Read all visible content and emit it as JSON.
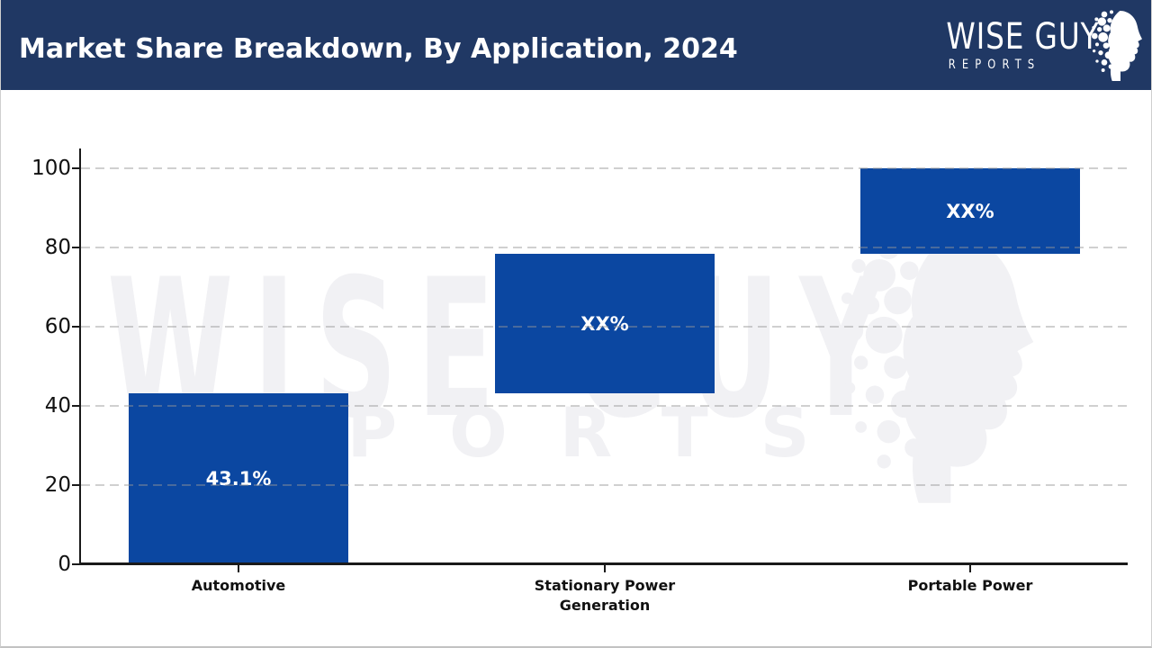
{
  "header": {
    "title": "Market Share Breakdown, By Application, 2024",
    "logo": {
      "line1": "WISE GUY",
      "line2": "REPORTS",
      "icon": "dotted-head-profile"
    }
  },
  "watermark": {
    "line1": "WISE GUY",
    "line2": "REPORTS",
    "icon": "dotted-head-profile"
  },
  "colors": {
    "header_bg": "#203864",
    "bar": "#0b47a1",
    "bar_label": "#ffffff",
    "axis": "#1a1a1a",
    "gridline": "#d8d8d8",
    "watermark": "#f1f1f4"
  },
  "chart_data": {
    "type": "bar",
    "subtype": "waterfall",
    "title": "Market Share Breakdown, By Application, 2024",
    "categories": [
      "Automotive",
      "Stationary Power Generation",
      "Portable Power"
    ],
    "segments": [
      {
        "category": "Automotive",
        "start": 0,
        "end": 43.1,
        "value": 43.1,
        "label": "43.1%"
      },
      {
        "category": "Stationary Power Generation",
        "start": 43.1,
        "end": 78.4,
        "value": 35.3,
        "label": "XX%"
      },
      {
        "category": "Portable Power",
        "start": 78.4,
        "end": 100,
        "value": 21.6,
        "label": "XX%"
      }
    ],
    "yticks": [
      0,
      20,
      40,
      60,
      80,
      100
    ],
    "ylim": [
      0,
      105
    ],
    "xlabel": "",
    "ylabel": "",
    "grid": true,
    "gridline_style": "dashed",
    "legend": "none",
    "bar_color": "#0b47a1",
    "label_color": "#ffffff"
  }
}
